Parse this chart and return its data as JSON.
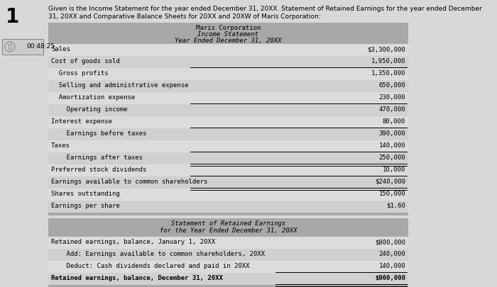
{
  "question_number": "1",
  "question_text_line1": "Given is the Income Statement for the year ended December 31, 20XX. Statement of Retained Earnings for the year ended December",
  "question_text_line2": "31, 20XX and Comparative Balance Sheets for 20XX and 20XW of Maris Corporation:",
  "timer": "00:48:25",
  "income_statement": {
    "title_lines": [
      "Maris Corporation",
      "Income Statement",
      "Year Ended December 31, 20XX"
    ],
    "rows": [
      {
        "label": "Sales",
        "value": "$3,300,000",
        "indent": 0,
        "underline_below": false,
        "double_under": false
      },
      {
        "label": "Cost of goods sold",
        "value": "1,950,000",
        "indent": 0,
        "underline_below": true,
        "double_under": false
      },
      {
        "label": "  Gross profits",
        "value": "1,350,000",
        "indent": 0,
        "underline_below": false,
        "double_under": false
      },
      {
        "label": "  Selling and administrative expense",
        "value": "650,000",
        "indent": 0,
        "underline_below": false,
        "double_under": false
      },
      {
        "label": "  Amortization expense",
        "value": "230,000",
        "indent": 0,
        "underline_below": true,
        "double_under": false
      },
      {
        "label": "    Operating income",
        "value": "470,000",
        "indent": 0,
        "underline_below": false,
        "double_under": false
      },
      {
        "label": "Interest expense",
        "value": "80,000",
        "indent": 0,
        "underline_below": true,
        "double_under": false
      },
      {
        "label": "    Earnings before taxes",
        "value": "390,000",
        "indent": 0,
        "underline_below": false,
        "double_under": false
      },
      {
        "label": "Taxes",
        "value": "140,000",
        "indent": 0,
        "underline_below": true,
        "double_under": false
      },
      {
        "label": "    Earnings after taxes",
        "value": "250,000",
        "indent": 0,
        "underline_below": true,
        "double_under": true
      },
      {
        "label": "Preferred stock dividends",
        "value": "10,000",
        "indent": 0,
        "underline_below": true,
        "double_under": false
      },
      {
        "label": "Earnings available to common shareholders",
        "value": "$240,000",
        "indent": 0,
        "underline_below": true,
        "double_under": true
      },
      {
        "label": "Shares outstanding",
        "value": "150,000",
        "indent": 0,
        "underline_below": false,
        "double_under": false
      },
      {
        "label": "Earnings per share",
        "value": "$1.60",
        "indent": 0,
        "underline_below": false,
        "double_under": false
      }
    ]
  },
  "retained_earnings": {
    "title_lines": [
      "Statement of Retained Earnings",
      "for the Year Ended December 31, 20XX"
    ],
    "rows": [
      {
        "label": "Retained earnings, balance, January 1, 20XX",
        "value": "$800,000",
        "bold": false,
        "underline_below": false,
        "double_under": false
      },
      {
        "label": "    Add: Earnings available to common shareholders, 20XX",
        "value": "240,000",
        "bold": false,
        "underline_below": false,
        "double_under": false
      },
      {
        "label": "    Deduct: Cash dividends declared and paid in 20XX",
        "value": "140,000",
        "bold": false,
        "underline_below": true,
        "double_under": false
      },
      {
        "label": "Retained earnings, balance, December 31, 20XX",
        "value": "$900,000",
        "bold": true,
        "underline_below": true,
        "double_under": true
      }
    ]
  },
  "bg_color": "#d8d8d8",
  "header_color": "#a8a8a8",
  "row_colors": [
    "#dcdcdc",
    "#d0d0d0"
  ],
  "text_color": "#000000",
  "font_size": 6.5
}
